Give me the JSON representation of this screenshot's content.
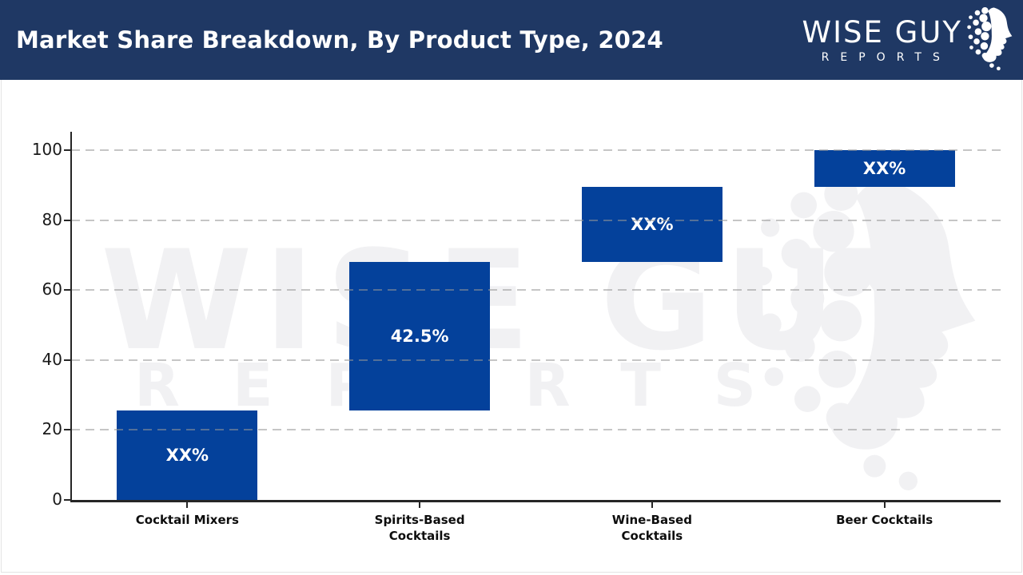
{
  "header": {
    "title": "Market Share Breakdown, By Product Type, 2024",
    "logo": {
      "line1": "WISE GUY",
      "line2": "REPORTS"
    }
  },
  "watermark": {
    "line1": "WISE GUY",
    "line2": "REPORTS"
  },
  "chart_data": {
    "type": "bar",
    "subtype": "waterfall-floating-segments",
    "title": "Market Share Breakdown, By Product Type, 2024",
    "categories": [
      "Cocktail Mixers",
      "Spirits-Based Cocktails",
      "Wine-Based Cocktails",
      "Beer Cocktails"
    ],
    "segments": [
      {
        "category": "Cocktail Mixers",
        "start": 0,
        "end": 25.5,
        "label": "XX%"
      },
      {
        "category": "Spirits-Based Cocktails",
        "start": 25.5,
        "end": 68,
        "label": "42.5%"
      },
      {
        "category": "Wine-Based Cocktails",
        "start": 68,
        "end": 89.5,
        "label": "XX%"
      },
      {
        "category": "Beer Cocktails",
        "start": 89.5,
        "end": 100,
        "label": "XX%"
      }
    ],
    "yticks": [
      0,
      20,
      40,
      60,
      80,
      100
    ],
    "ylim": [
      0,
      100
    ],
    "xlabel": "",
    "ylabel": "",
    "legend": "none",
    "grid": "horizontal-dashed-over-bars"
  },
  "colors": {
    "header_bg": "#1f3864",
    "bar": "#04419b",
    "bar_label": "#ffffff",
    "watermark": "#f1f1f3",
    "axis": "#262626",
    "tick_text": "#1a1a1a"
  }
}
